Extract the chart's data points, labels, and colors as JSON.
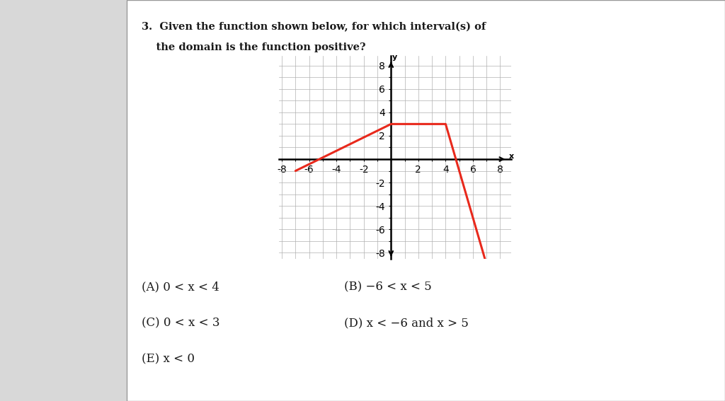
{
  "graph_xlim": [
    -8,
    8
  ],
  "graph_ylim": [
    -8,
    8
  ],
  "line_x": [
    -7,
    0,
    4,
    7
  ],
  "line_y": [
    -1,
    3,
    3,
    -9
  ],
  "line_color": "#e8291c",
  "line_width": 2.2,
  "grid_color": "#b0b0b0",
  "axis_color": "#000000",
  "bg_color": "#ffffff",
  "outer_bg": "#d8d8d8",
  "panel_bg": "#ffffff",
  "title_line1": "3.  Given the function shown below, for which interval(s) of",
  "title_line2": "    the domain is the function positive?",
  "choices": [
    {
      "label": "(A) 0 < x < 4",
      "col": 0,
      "row": 0
    },
    {
      "label": "(B) −6 < x < 5",
      "col": 1,
      "row": 0
    },
    {
      "label": "(C) 0 < x < 3",
      "col": 0,
      "row": 1
    },
    {
      "label": "(D) x < −6 and x > 5",
      "col": 1,
      "row": 1
    },
    {
      "label": "(E) x < 0",
      "col": 0,
      "row": 2
    }
  ],
  "choice_fontsize": 12
}
